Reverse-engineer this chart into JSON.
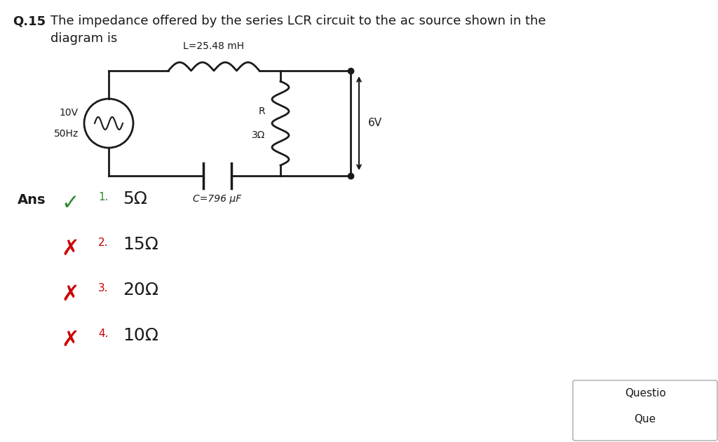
{
  "question_number": "Q.15",
  "question_line1": "The impedance offered by the series LCR circuit to the ac source shown in the",
  "question_line2": "diagram is",
  "bg_color": "#ffffff",
  "text_color": "#1a1a1a",
  "ans_label": "Ans",
  "options": [
    {
      "number": "1.",
      "text": "5Ω",
      "correct": true
    },
    {
      "number": "2.",
      "text": "15Ω",
      "correct": false
    },
    {
      "number": "3.",
      "text": "20Ω",
      "correct": false
    },
    {
      "number": "4.",
      "text": "10Ω",
      "correct": false
    }
  ],
  "correct_color": "#2e8b2e",
  "wrong_color": "#cc0000",
  "circuit": {
    "source_label_line1": "10V",
    "source_label_line2": "50Hz",
    "inductor_label": "L=25.48 mH",
    "resistor_label_line1": "R",
    "resistor_label_line2": "3Ω",
    "capacitor_label": "C=796 μF",
    "voltage_label": "6V"
  },
  "box_text1": "Questio",
  "box_text2": "Que"
}
